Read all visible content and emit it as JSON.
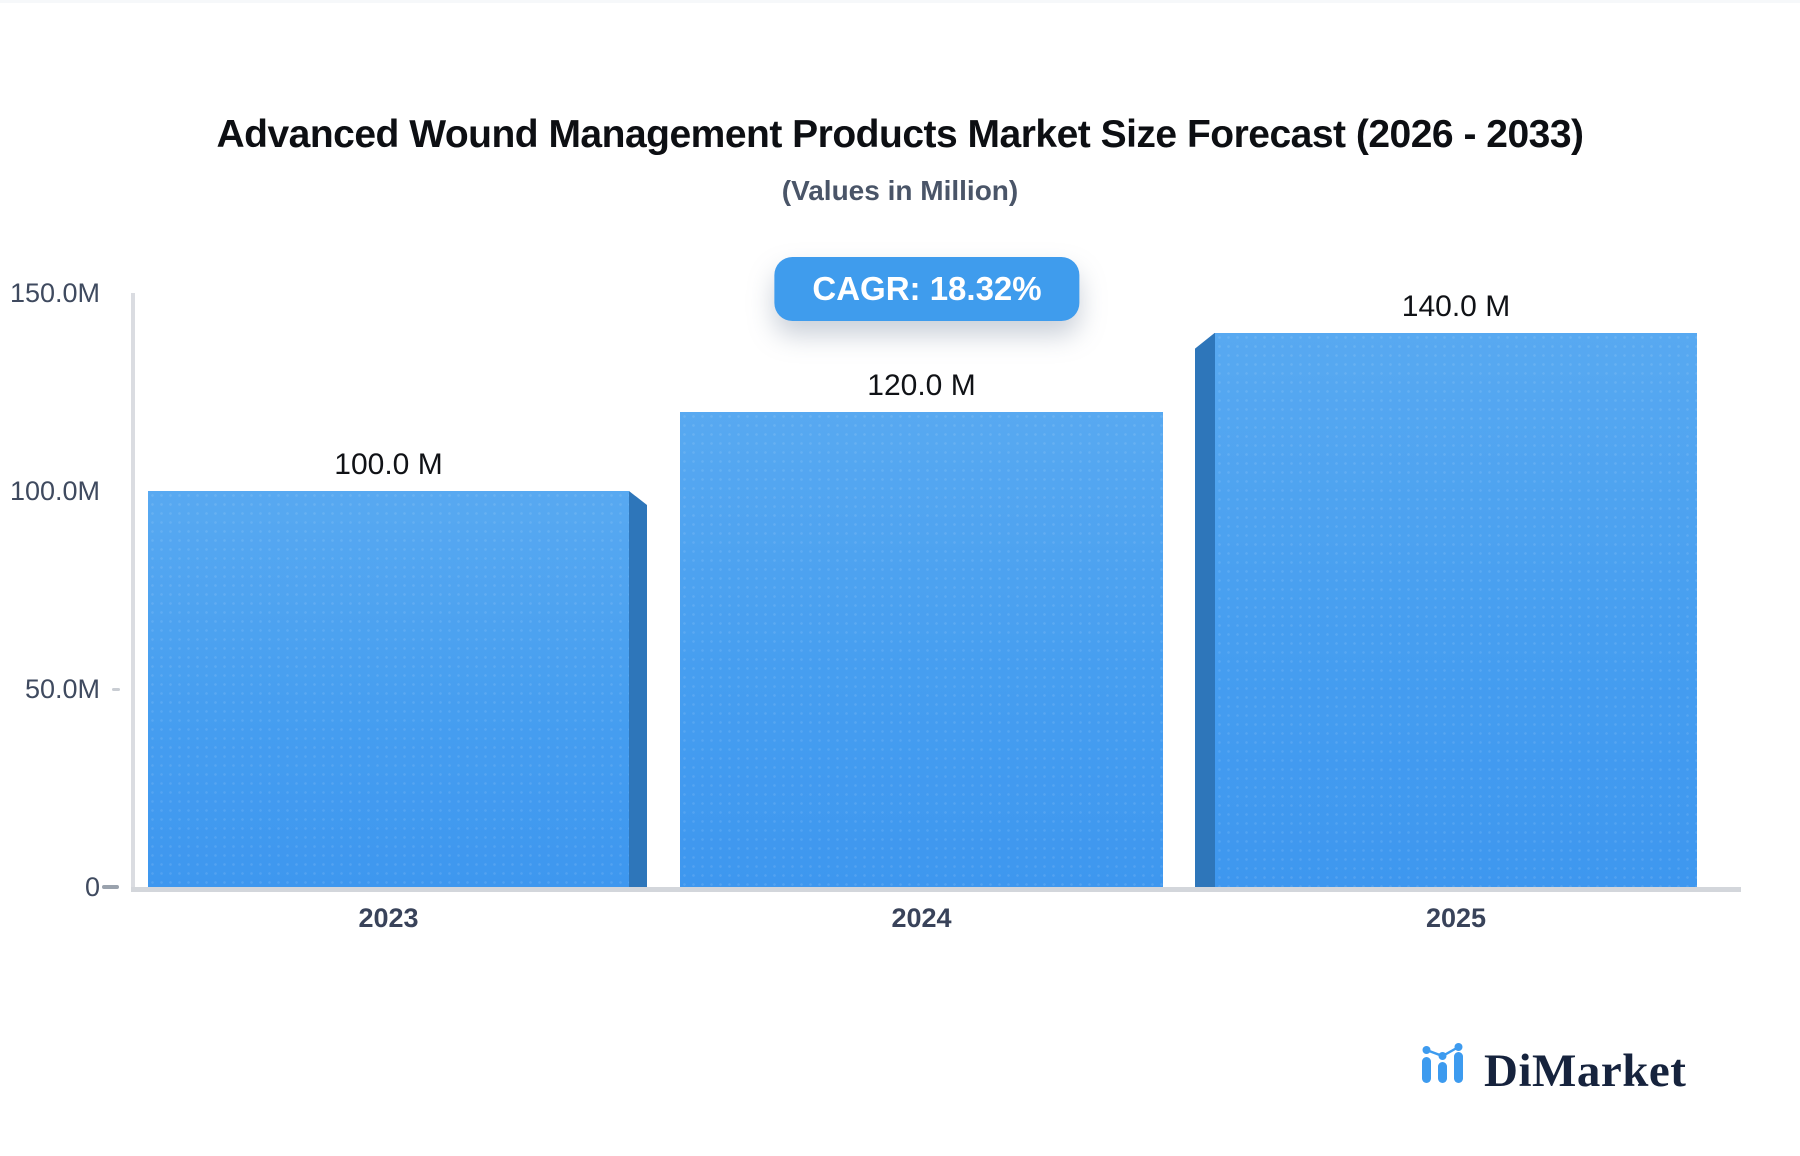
{
  "header": {
    "title": "Advanced Wound Management Products Market Size Forecast (2026 - 2033)",
    "subtitle": "(Values in Million)",
    "cagr_badge": "CAGR: 18.32%"
  },
  "chart_data": {
    "type": "bar",
    "title": "Advanced Wound Management Products Market Size Forecast (2026 - 2033)",
    "subtitle": "(Values in Million)",
    "unit": "Million",
    "cagr_percent": 18.32,
    "categories": [
      "2023",
      "2024",
      "2025"
    ],
    "values": [
      100.0,
      120.0,
      140.0
    ],
    "bar_labels": [
      "100.0 M",
      "120.0 M",
      "140.0 M"
    ],
    "ylim": [
      0,
      150
    ],
    "y_ticks": [
      {
        "value": 150,
        "label": "150.0M"
      },
      {
        "value": 100,
        "label": "100.0M"
      },
      {
        "value": 50,
        "label": "50.0M"
      },
      {
        "value": 0,
        "label": "0"
      }
    ],
    "legend": "none",
    "grid": "off",
    "xlabel": "",
    "ylabel": ""
  },
  "branding": {
    "logo_text": "DiMarket",
    "logo_icon": "bar-line-chart-icon"
  },
  "colors": {
    "bar_face_top": "#58a9f1",
    "bar_face_bottom": "#3e97ef",
    "bar_side": "#2e76ba",
    "badge_bg": "#3f9ced",
    "badge_text": "#ffffff",
    "axis_line": "#dadce1",
    "baseline": "#d3d6db",
    "tick_text": "#3f4a5f",
    "title_text": "#0d0f13",
    "subtitle_text": "#4a5568",
    "value_text": "#101216",
    "logo_text": "#16233d",
    "logo_blue": "#3d9bef"
  }
}
